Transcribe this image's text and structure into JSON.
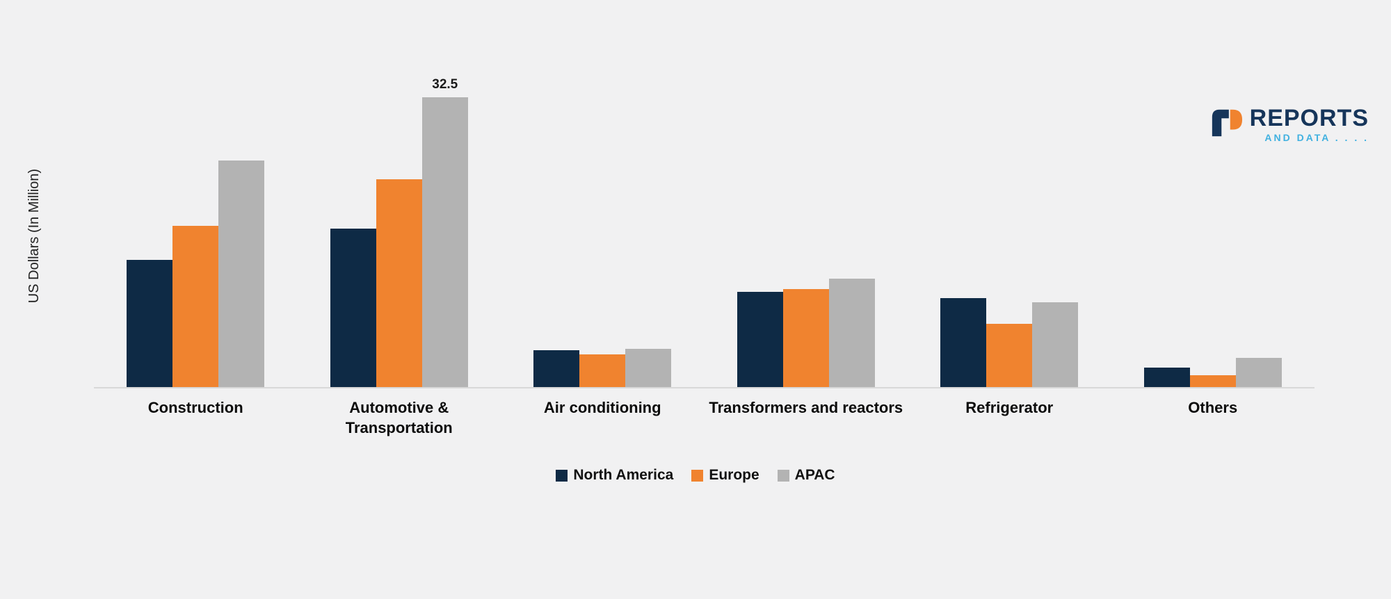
{
  "logo": {
    "line1": "REPORTS",
    "line2": "AND DATA . . . ."
  },
  "chart_data": {
    "type": "bar",
    "title": "",
    "xlabel": "",
    "ylabel": "US Dollars  (In Million)",
    "ylim": [
      0,
      34
    ],
    "grid": false,
    "legend_position": "bottom",
    "categories": [
      "Construction",
      "Automotive &\nTransportation",
      "Air conditioning",
      "Transformers and reactors",
      "Refrigerator",
      "Others"
    ],
    "series": [
      {
        "name": "North America",
        "color": "#0e2a45",
        "values": [
          14.3,
          17.8,
          4.1,
          10.7,
          10.0,
          2.2
        ]
      },
      {
        "name": "Europe",
        "color": "#f0832f",
        "values": [
          18.1,
          23.3,
          3.7,
          11.0,
          7.1,
          1.3
        ]
      },
      {
        "name": "APAC",
        "color": "#b3b3b3",
        "values": [
          25.4,
          32.5,
          4.3,
          12.2,
          9.5,
          3.3
        ]
      }
    ],
    "annotations": [
      {
        "category_index": 1,
        "series_index": 2,
        "text": "32.5"
      }
    ]
  }
}
